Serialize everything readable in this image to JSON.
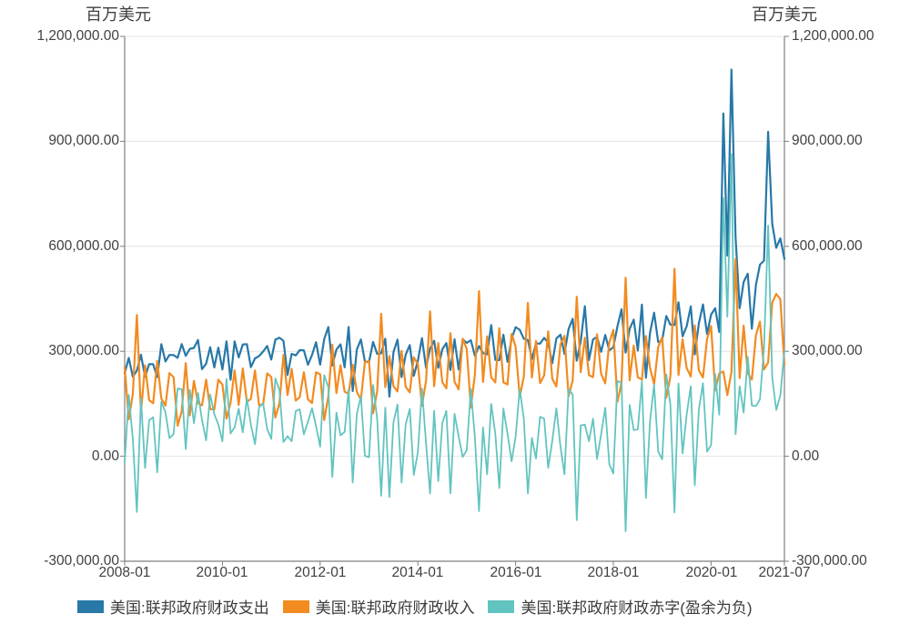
{
  "axis_titles": {
    "left": "百万美元",
    "right": "百万美元"
  },
  "y_axis": {
    "tick_labels": [
      "1,200,000.00",
      "900,000.00",
      "600,000.00",
      "300,000.00",
      "0.00",
      "-300,000.00"
    ],
    "tick_values": [
      1200000,
      900000,
      600000,
      300000,
      0,
      -300000
    ]
  },
  "x_axis": {
    "tick_labels": [
      "2008-01",
      "2010-01",
      "2012-01",
      "2014-01",
      "2016-01",
      "2018-01",
      "2020-01",
      "2021-07"
    ],
    "tick_months": [
      0,
      24,
      48,
      72,
      96,
      120,
      144,
      162
    ]
  },
  "chart_data": {
    "type": "line",
    "title": "",
    "unit": "百万美元",
    "ylabel": "百万美元",
    "ylim": [
      -300000,
      1200000
    ],
    "grid": true,
    "legend_position": "bottom",
    "x_start": "2008-01",
    "x_end": "2021-07",
    "x_frequency": "monthly",
    "n_points": 163,
    "series": [
      {
        "name": "美国:联邦政府财政支出",
        "color": "#2878A8",
        "width": 2.2,
        "values": [
          237400,
          280900,
          227000,
          244500,
          290200,
          226600,
          263300,
          263100,
          226500,
          320400,
          271000,
          289700,
          289400,
          281200,
          320500,
          287100,
          306900,
          309700,
          332200,
          249100,
          264400,
          311700,
          253900,
          310300,
          247900,
          328400,
          218700,
          328000,
          282700,
          319500,
          320600,
          254500,
          279800,
          286400,
          299400,
          315100,
          276300,
          333200,
          339000,
          330000,
          232600,
          292700,
          288400,
          303400,
          302900,
          261500,
          289700,
          325900,
          261700,
          335100,
          369400,
          259700,
          305300,
          319900,
          254200,
          369400,
          186400,
          304300,
          333800,
          270700,
          269300,
          326400,
          292500,
          294200,
          335900,
          170100,
          297600,
          333300,
          226300,
          290500,
          317700,
          229900,
          273200,
          337600,
          252700,
          307500,
          330000,
          252900,
          306000,
          323600,
          246400,
          334200,
          248100,
          333700,
          324100,
          331600,
          287000,
          315100,
          294900,
          291300,
          374900,
          275400,
          274600,
          347400,
          269800,
          335400,
          368800,
          361700,
          336100,
          332200,
          277600,
          323000,
          321800,
          338400,
          324200,
          265900,
          336600,
          347500,
          292700,
          363800,
          392800,
          273200,
          328800,
          428900,
          274800,
          334000,
          341000,
          298600,
          346900,
          302700,
          311800,
          371000,
          420000,
          296200,
          363900,
          390500,
          302200,
          433300,
          224400,
          353000,
          410600,
          326200,
          331300,
          401200,
          375800,
          375200,
          440000,
          342600,
          371700,
          428300,
          291100,
          380000,
          433900,
          349100,
          404800,
          423300,
          355500,
          979700,
          573600,
          1105000,
          626500,
          423300,
          498100,
          521800,
          364500,
          489700,
          547500,
          559200,
          927200,
          664800,
          595900,
          623000,
          564100
        ]
      },
      {
        "name": "美国:联邦政府财政收入",
        "color": "#F28B20",
        "width": 2.2,
        "values": [
          255200,
          105700,
          178800,
          403800,
          124600,
          259900,
          160500,
          151600,
          272200,
          164800,
          144800,
          237800,
          226100,
          87300,
          129000,
          266200,
          117200,
          215400,
          151500,
          145500,
          218900,
          135300,
          133600,
          218900,
          205200,
          107500,
          153400,
          245300,
          146800,
          251000,
          155500,
          164000,
          245200,
          145900,
          148900,
          236900,
          226600,
          110700,
          150900,
          289500,
          174900,
          249700,
          159100,
          169200,
          240200,
          163100,
          152400,
          239900,
          234300,
          103400,
          171200,
          318800,
          180700,
          260200,
          184600,
          178900,
          261600,
          184300,
          161700,
          269500,
          272200,
          122800,
          186000,
          407000,
          197200,
          286600,
          200000,
          185400,
          301400,
          198900,
          182400,
          283200,
          262800,
          144000,
          215800,
          414200,
          200100,
          323600,
          211300,
          194200,
          352100,
          212700,
          191400,
          335800,
          306500,
          139100,
          234100,
          471800,
          212400,
          342900,
          225500,
          211000,
          365700,
          211000,
          205000,
          349600,
          313600,
          169100,
          228000,
          438400,
          225200,
          329600,
          209000,
          231300,
          357300,
          221700,
          199700,
          319900,
          344100,
          171700,
          216600,
          455600,
          240400,
          338700,
          232000,
          226200,
          348700,
          235300,
          208400,
          325800,
          361000,
          155600,
          210800,
          510400,
          217100,
          316000,
          225300,
          219100,
          343600,
          252700,
          205900,
          312600,
          340000,
          167300,
          228800,
          535500,
          232100,
          334000,
          251900,
          228000,
          374000,
          245500,
          225200,
          335800,
          372300,
          188000,
          236800,
          241900,
          174900,
          240800,
          563500,
          223200,
          373200,
          237700,
          219100,
          346100,
          384700,
          248300,
          267600,
          439200,
          463700,
          449300,
          261800
        ]
      },
      {
        "name": "美国:联邦政府财政赤字(盈余为负)",
        "color": "#62C4C0",
        "width": 1.8,
        "values": [
          -17800,
          175200,
          48200,
          -159300,
          165600,
          -33300,
          102800,
          111500,
          -45700,
          155600,
          126200,
          51900,
          63300,
          193900,
          191500,
          20900,
          189700,
          94300,
          180700,
          103600,
          45500,
          176400,
          120300,
          91400,
          42700,
          220900,
          65300,
          82700,
          135900,
          68500,
          165100,
          90500,
          34600,
          140500,
          150500,
          78200,
          49700,
          222500,
          188100,
          40500,
          57700,
          43000,
          129300,
          134200,
          62700,
          98400,
          137300,
          86000,
          27400,
          231700,
          198200,
          -59100,
          124600,
          59700,
          69600,
          190500,
          -75200,
          120000,
          172100,
          1200,
          -2900,
          203600,
          106500,
          -112800,
          138700,
          -116500,
          97600,
          147900,
          -75100,
          91600,
          135300,
          -53300,
          10400,
          193600,
          36900,
          -106700,
          129900,
          -70700,
          94700,
          129400,
          -105700,
          121500,
          56700,
          -2100,
          17600,
          192500,
          52900,
          -156700,
          82500,
          -51600,
          149400,
          64400,
          -91100,
          136400,
          64800,
          -14200,
          55200,
          192600,
          108100,
          -106200,
          52400,
          -6600,
          112800,
          107100,
          -33100,
          44200,
          136900,
          27600,
          -51400,
          192100,
          176200,
          -182400,
          88400,
          90200,
          42800,
          107800,
          -7700,
          63300,
          138500,
          -23100,
          -49200,
          215400,
          209200,
          -214200,
          146800,
          74500,
          76900,
          214200,
          -119200,
          100300,
          204700,
          13600,
          -8700,
          233900,
          147000,
          -160300,
          207900,
          8600,
          119800,
          200300,
          -82900,
          134500,
          208700,
          13300,
          32500,
          235300,
          118700,
          737800,
          398700,
          864200,
          63000,
          200100,
          124900,
          284100,
          145400,
          143600,
          162800,
          310900,
          659600,
          225600,
          132200,
          173700,
          302300
        ]
      }
    ]
  }
}
